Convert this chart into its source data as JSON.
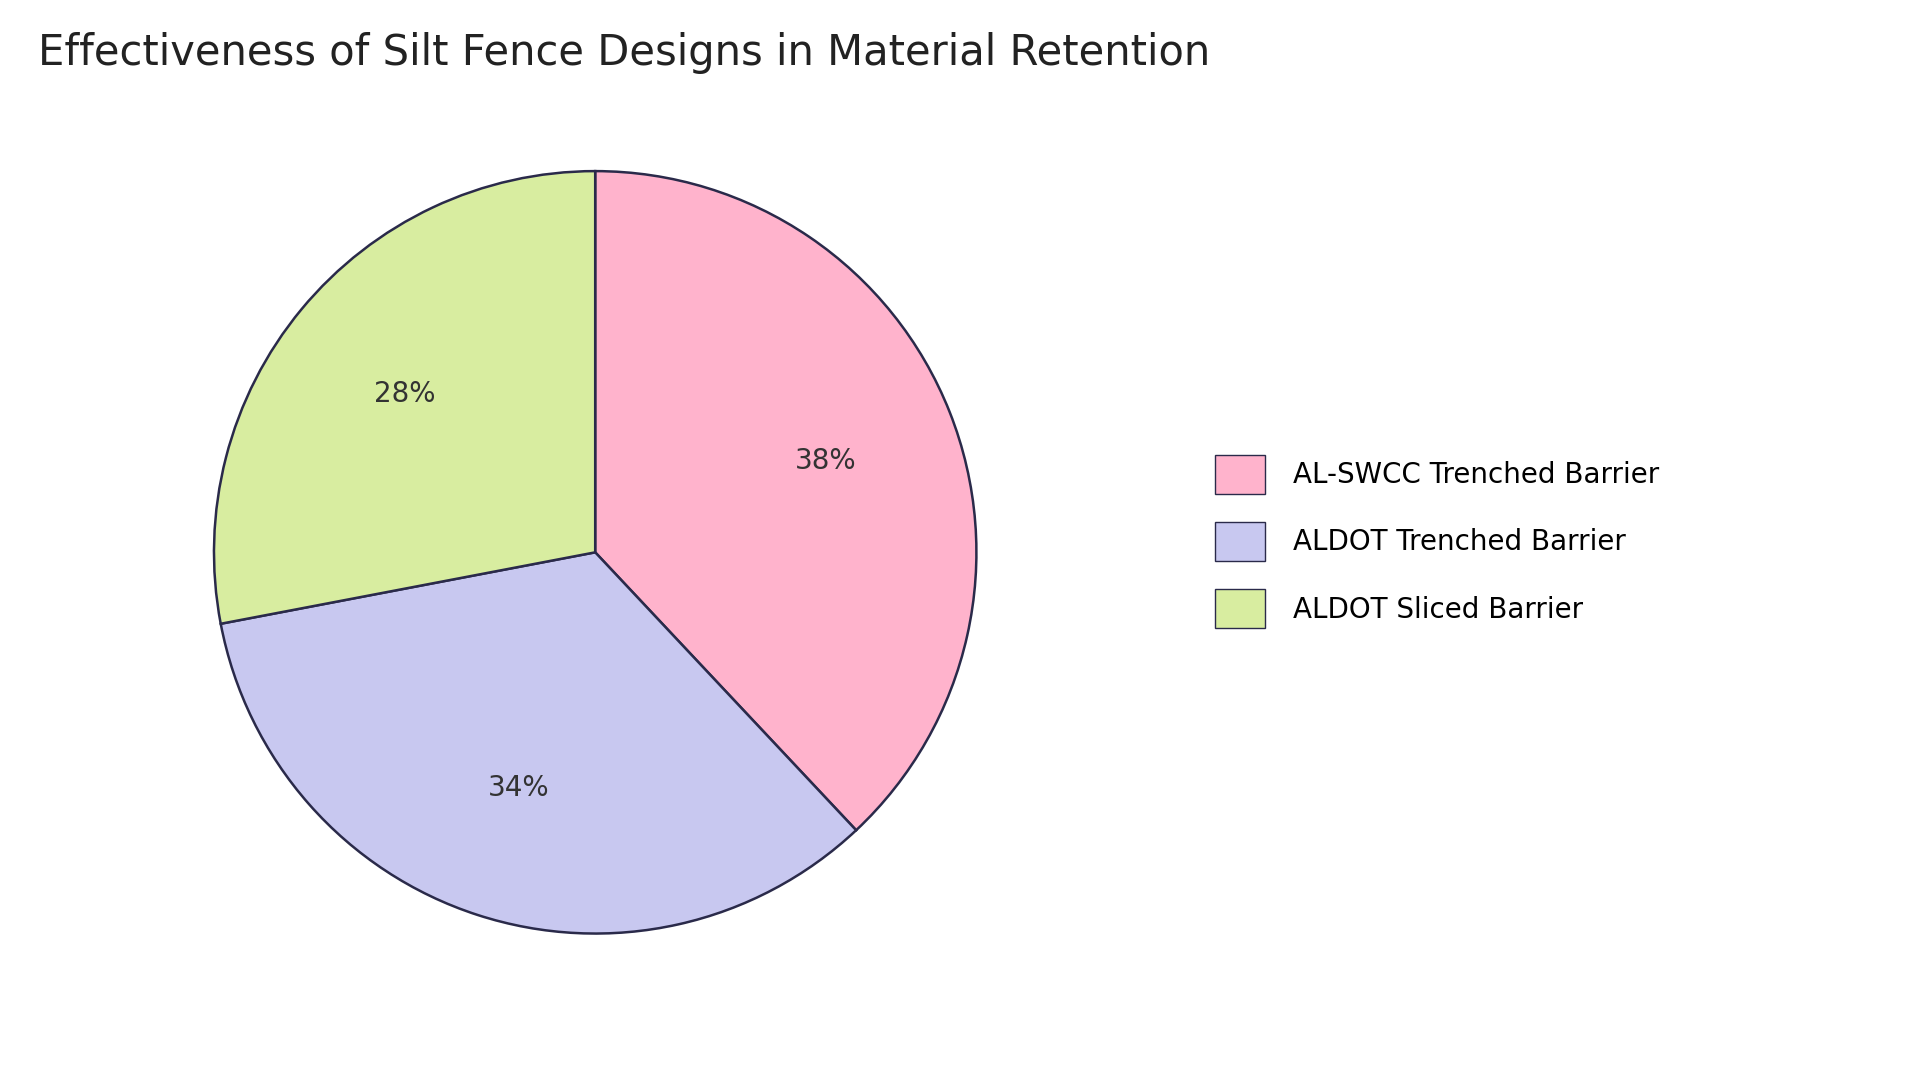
{
  "title": "Effectiveness of Silt Fence Designs in Material Retention",
  "slices": [
    {
      "label": "AL-SWCC Trenched Barrier",
      "value": 38,
      "color": "#FFB3CC",
      "edge_color": "#2a2a4a"
    },
    {
      "label": "ALDOT Trenched Barrier",
      "value": 34,
      "color": "#C8C8F0",
      "edge_color": "#2a2a4a"
    },
    {
      "label": "ALDOT Sliced Barrier",
      "value": 28,
      "color": "#D8EDA0",
      "edge_color": "#2a2a4a"
    }
  ],
  "background_color": "#FFFFFF",
  "title_fontsize": 30,
  "label_fontsize": 20,
  "legend_fontsize": 20,
  "startangle": 90,
  "pie_edge_color": "#2a2a4a",
  "pie_linewidth": 1.8,
  "pctdistance": 0.65
}
